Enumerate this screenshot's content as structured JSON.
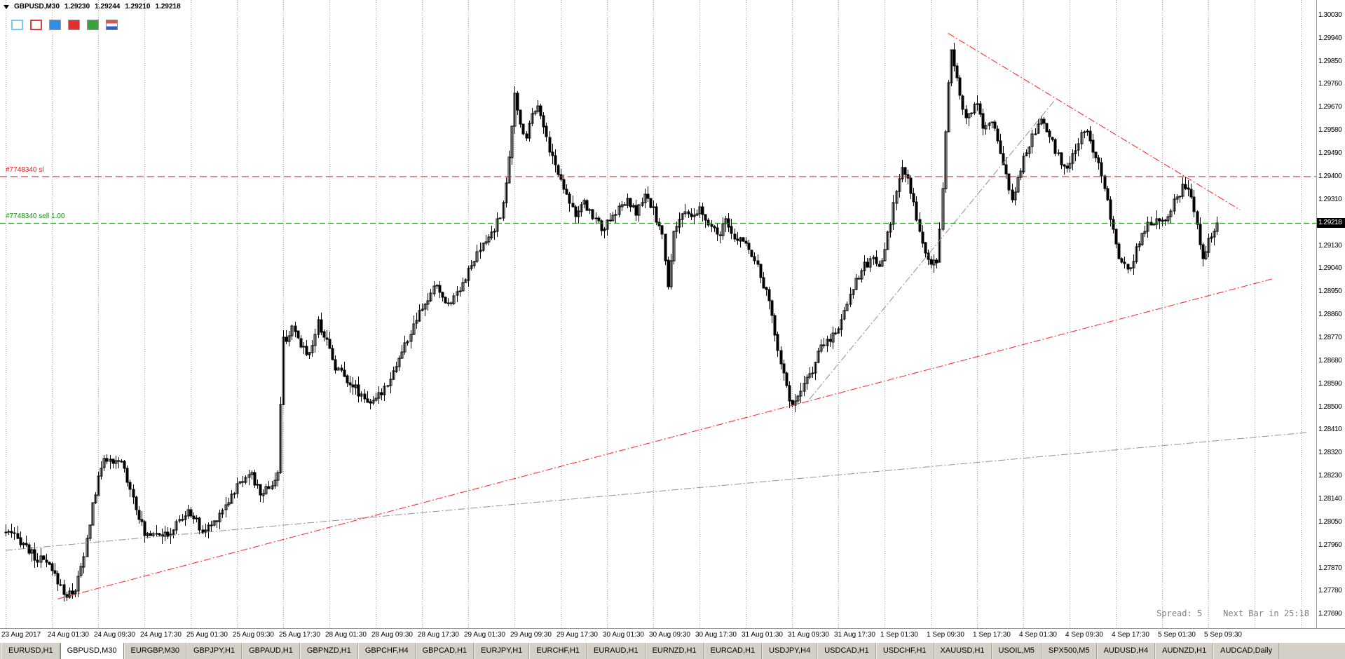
{
  "window": {
    "title": "GBPUSD,M30"
  },
  "chart": {
    "quote_line": {
      "symbol": "GBPUSD,M30",
      "open": "1.29230",
      "high": "1.29244",
      "low": "1.29210",
      "close": "1.29218"
    },
    "toolbar_swatches": [
      {
        "name": "swatch-lightblue-outline-button",
        "fill": "#ffffff",
        "border": "#7ec8f0"
      },
      {
        "name": "swatch-red-outline-button",
        "fill": "#ffffff",
        "border": "#e03a3a"
      },
      {
        "name": "swatch-blue-button",
        "fill": "#2e8fe8"
      },
      {
        "name": "swatch-red-button",
        "fill": "#e03030"
      },
      {
        "name": "swatch-green-button",
        "fill": "#38a338"
      },
      {
        "name": "swatch-flag-button",
        "stripes": [
          "#e05050",
          "#ffffff",
          "#3060d0"
        ]
      }
    ],
    "orders": [
      {
        "id": "order-stop-loss-line",
        "label": "#7748340 sl",
        "price": 1.294,
        "color": "#e02020",
        "dash": "10 5"
      },
      {
        "id": "order-sell-line",
        "label": "#7748340 sell 1.00",
        "price": 1.29218,
        "color": "#109010",
        "dash": "8 4"
      }
    ],
    "price_tag": "1.29218",
    "status": {
      "spread": "Spread: 5",
      "next_bar": "Next Bar in 25:18"
    }
  },
  "chart_data": {
    "type": "candlestick",
    "title": "GBPUSD,M30",
    "background": "#ffffff",
    "candle_color": "#000000",
    "grid_color": "#a8a8a8",
    "bar_count": 420,
    "bars_per_x_label": 16,
    "x_labels": [
      "23 Aug 2017",
      "24 Aug 01:30",
      "24 Aug 09:30",
      "24 Aug 17:30",
      "25 Aug 01:30",
      "25 Aug 09:30",
      "25 Aug 17:30",
      "28 Aug 01:30",
      "28 Aug 09:30",
      "28 Aug 17:30",
      "29 Aug 01:30",
      "29 Aug 09:30",
      "29 Aug 17:30",
      "30 Aug 01:30",
      "30 Aug 09:30",
      "30 Aug 17:30",
      "31 Aug 01:30",
      "31 Aug 09:30",
      "31 Aug 17:30",
      "1 Sep 01:30",
      "1 Sep 09:30",
      "1 Sep 17:30",
      "4 Sep 01:30",
      "4 Sep 09:30",
      "4 Sep 17:30",
      "5 Sep 01:30",
      "5 Sep 09:30"
    ],
    "y_axis": {
      "min": 1.2769,
      "max": 1.3003,
      "step": 0.0009,
      "labels": [
        "1.30030",
        "1.29940",
        "1.29850",
        "1.29760",
        "1.29670",
        "1.29580",
        "1.29490",
        "1.29400",
        "1.29310",
        "1.29220",
        "1.29130",
        "1.29040",
        "1.28950",
        "1.28860",
        "1.28770",
        "1.28680",
        "1.28590",
        "1.28500",
        "1.28410",
        "1.28320",
        "1.28230",
        "1.28140",
        "1.28050",
        "1.27960",
        "1.27870",
        "1.27780",
        "1.27690"
      ]
    },
    "last_close": 1.29218,
    "price_waypoints": [
      [
        0,
        1.2801
      ],
      [
        6,
        1.2797
      ],
      [
        10,
        1.2791
      ],
      [
        14,
        1.2789
      ],
      [
        18,
        1.2782
      ],
      [
        21,
        1.2776
      ],
      [
        24,
        1.2779
      ],
      [
        27,
        1.2791
      ],
      [
        30,
        1.2812
      ],
      [
        34,
        1.2831
      ],
      [
        37,
        1.2827
      ],
      [
        40,
        1.2829
      ],
      [
        44,
        1.2815
      ],
      [
        48,
        1.28
      ],
      [
        52,
        1.2802
      ],
      [
        56,
        1.2799
      ],
      [
        60,
        1.2806
      ],
      [
        64,
        1.2809
      ],
      [
        68,
        1.2801
      ],
      [
        72,
        1.2805
      ],
      [
        76,
        1.2812
      ],
      [
        80,
        1.2819
      ],
      [
        84,
        1.2825
      ],
      [
        88,
        1.2816
      ],
      [
        92,
        1.282
      ],
      [
        94,
        1.2824
      ],
      [
        96,
        1.2876
      ],
      [
        99,
        1.288
      ],
      [
        102,
        1.2874
      ],
      [
        105,
        1.2871
      ],
      [
        108,
        1.2883
      ],
      [
        111,
        1.2876
      ],
      [
        114,
        1.2866
      ],
      [
        118,
        1.2861
      ],
      [
        122,
        1.2856
      ],
      [
        127,
        1.2851
      ],
      [
        130,
        1.2856
      ],
      [
        134,
        1.2864
      ],
      [
        138,
        1.2874
      ],
      [
        142,
        1.2884
      ],
      [
        146,
        1.2892
      ],
      [
        149,
        1.2898
      ],
      [
        152,
        1.289
      ],
      [
        155,
        1.2893
      ],
      [
        158,
        1.2899
      ],
      [
        161,
        1.2905
      ],
      [
        164,
        1.2911
      ],
      [
        168,
        1.2918
      ],
      [
        171,
        1.2924
      ],
      [
        174,
        1.2946
      ],
      [
        176,
        1.2972
      ],
      [
        178,
        1.296
      ],
      [
        180,
        1.2956
      ],
      [
        182,
        1.2965
      ],
      [
        184,
        1.2969
      ],
      [
        186,
        1.2959
      ],
      [
        188,
        1.2951
      ],
      [
        191,
        1.2941
      ],
      [
        194,
        1.2934
      ],
      [
        197,
        1.2925
      ],
      [
        200,
        1.2929
      ],
      [
        203,
        1.2925
      ],
      [
        206,
        1.292
      ],
      [
        209,
        1.2922
      ],
      [
        212,
        1.2928
      ],
      [
        215,
        1.293
      ],
      [
        218,
        1.2926
      ],
      [
        221,
        1.2932
      ],
      [
        224,
        1.2927
      ],
      [
        227,
        1.2917
      ],
      [
        229,
        1.2896
      ],
      [
        231,
        1.2919
      ],
      [
        234,
        1.2926
      ],
      [
        237,
        1.2923
      ],
      [
        240,
        1.2927
      ],
      [
        243,
        1.2921
      ],
      [
        246,
        1.2917
      ],
      [
        249,
        1.2922
      ],
      [
        252,
        1.2915
      ],
      [
        255,
        1.2916
      ],
      [
        258,
        1.291
      ],
      [
        261,
        1.2901
      ],
      [
        264,
        1.2891
      ],
      [
        267,
        1.2873
      ],
      [
        269,
        1.2863
      ],
      [
        271,
        1.2853
      ],
      [
        273,
        1.2851
      ],
      [
        276,
        1.2858
      ],
      [
        279,
        1.2865
      ],
      [
        282,
        1.2873
      ],
      [
        285,
        1.2877
      ],
      [
        288,
        1.2881
      ],
      [
        291,
        1.2891
      ],
      [
        294,
        1.29
      ],
      [
        297,
        1.2905
      ],
      [
        300,
        1.2908
      ],
      [
        303,
        1.2906
      ],
      [
        306,
        1.2922
      ],
      [
        308,
        1.2935
      ],
      [
        310,
        1.2943
      ],
      [
        312,
        1.2938
      ],
      [
        314,
        1.2931
      ],
      [
        316,
        1.2918
      ],
      [
        318,
        1.291
      ],
      [
        320,
        1.2905
      ],
      [
        322,
        1.2908
      ],
      [
        324,
        1.2934
      ],
      [
        326,
        1.2978
      ],
      [
        327,
        1.2991
      ],
      [
        328,
        1.2982
      ],
      [
        330,
        1.2972
      ],
      [
        332,
        1.2962
      ],
      [
        334,
        1.2965
      ],
      [
        336,
        1.2969
      ],
      [
        338,
        1.2957
      ],
      [
        340,
        1.2962
      ],
      [
        342,
        1.2959
      ],
      [
        344,
        1.2948
      ],
      [
        346,
        1.294
      ],
      [
        348,
        1.2932
      ],
      [
        350,
        1.2938
      ],
      [
        352,
        1.2947
      ],
      [
        354,
        1.2953
      ],
      [
        356,
        1.2957
      ],
      [
        358,
        1.2961
      ],
      [
        360,
        1.2958
      ],
      [
        362,
        1.2953
      ],
      [
        364,
        1.2948
      ],
      [
        366,
        1.2944
      ],
      [
        368,
        1.2944
      ],
      [
        370,
        1.2951
      ],
      [
        372,
        1.2956
      ],
      [
        374,
        1.2957
      ],
      [
        376,
        1.2951
      ],
      [
        378,
        1.2946
      ],
      [
        380,
        1.2936
      ],
      [
        382,
        1.2925
      ],
      [
        384,
        1.2912
      ],
      [
        386,
        1.2906
      ],
      [
        388,
        1.2903
      ],
      [
        390,
        1.2908
      ],
      [
        392,
        1.2915
      ],
      [
        394,
        1.292
      ],
      [
        396,
        1.2922
      ],
      [
        398,
        1.2924
      ],
      [
        400,
        1.2923
      ],
      [
        402,
        1.2926
      ],
      [
        404,
        1.293
      ],
      [
        406,
        1.2934
      ],
      [
        408,
        1.2937
      ],
      [
        410,
        1.2931
      ],
      [
        412,
        1.2921
      ],
      [
        414,
        1.2909
      ],
      [
        416,
        1.2915
      ],
      [
        418,
        1.292
      ],
      [
        419,
        1.29218
      ]
    ],
    "trendlines": [
      {
        "name": "trendline-support-red",
        "color": "#ff2020",
        "points": [
          [
            18,
            1.2775
          ],
          [
            438,
            1.29
          ]
        ]
      },
      {
        "name": "trendline-resistance-red",
        "color": "#ff2020",
        "points": [
          [
            326,
            1.2996
          ],
          [
            427,
            1.2927
          ]
        ]
      },
      {
        "name": "trendline-gray-steep",
        "color": "#909090",
        "points": [
          [
            278,
            1.2853
          ],
          [
            363,
            1.297
          ]
        ]
      },
      {
        "name": "trendline-gray-shallow",
        "color": "#909090",
        "points": [
          [
            0,
            1.2794
          ],
          [
            450,
            1.284
          ]
        ]
      }
    ]
  },
  "tabs": [
    {
      "label": "EURUSD,H1"
    },
    {
      "label": "GBPUSD,M30",
      "active": true
    },
    {
      "label": "EURGBP,M30"
    },
    {
      "label": "GBPJPY,H1"
    },
    {
      "label": "GBPAUD,H1"
    },
    {
      "label": "GBPNZD,H1"
    },
    {
      "label": "GBPCHF,H4"
    },
    {
      "label": "GBPCAD,H1"
    },
    {
      "label": "EURJPY,H1"
    },
    {
      "label": "EURCHF,H1"
    },
    {
      "label": "EURAUD,H1"
    },
    {
      "label": "EURNZD,H1"
    },
    {
      "label": "EURCAD,H1"
    },
    {
      "label": "USDJPY,H4"
    },
    {
      "label": "USDCAD,H1"
    },
    {
      "label": "USDCHF,H1"
    },
    {
      "label": "XAUUSD,H1"
    },
    {
      "label": "USOIL,M5"
    },
    {
      "label": "SPX500,M5"
    },
    {
      "label": "AUDUSD,H4"
    },
    {
      "label": "AUDNZD,H1"
    },
    {
      "label": "AUDCAD,Daily"
    }
  ]
}
